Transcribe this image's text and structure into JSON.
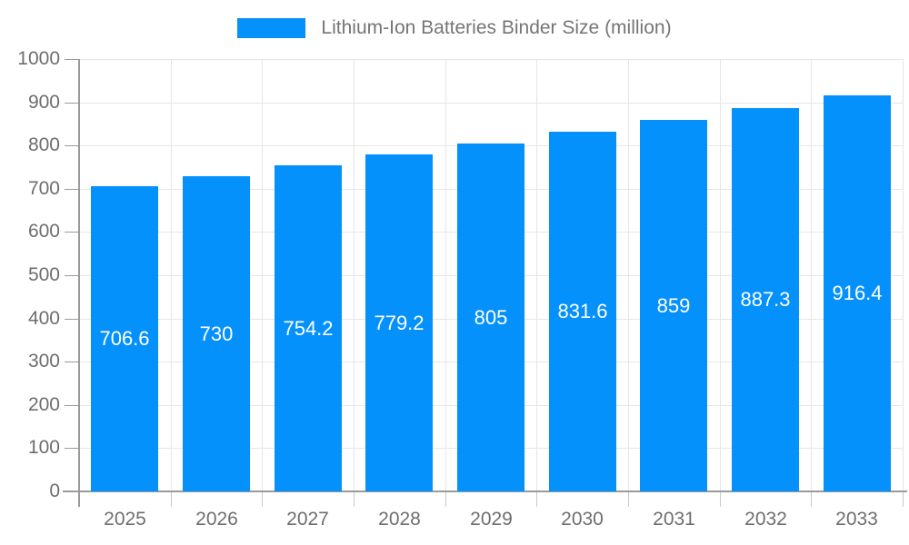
{
  "legend": {
    "items": [
      {
        "label": "Lithium-Ion Batteries Binder Size (million)",
        "swatch_color": "#0591FB"
      }
    ]
  },
  "chart_data": {
    "type": "bar",
    "title": "",
    "categories": [
      "2025",
      "2026",
      "2027",
      "2028",
      "2029",
      "2030",
      "2031",
      "2032",
      "2033"
    ],
    "series": [
      {
        "name": "Lithium-Ion Batteries Binder Size (million)",
        "values": [
          706.6,
          730,
          754.2,
          779.2,
          805,
          831.6,
          859,
          887.3,
          916.4
        ],
        "color": "#0591FB"
      }
    ],
    "value_labels": [
      "706.6",
      "730",
      "754.2",
      "779.2",
      "805",
      "831.6",
      "859",
      "887.3",
      "916.4"
    ],
    "xlabel": "",
    "ylabel": "",
    "ylim": [
      0,
      1000
    ],
    "yticks": [
      0,
      100,
      200,
      300,
      400,
      500,
      600,
      700,
      800,
      900,
      1000
    ],
    "grid": true,
    "legend_position": "top-center",
    "value_label_style": {
      "color": "#ffffff",
      "position": "center-of-bar"
    }
  },
  "colors": {
    "bar": "#0591FB",
    "axis_line": "#9a9a9a",
    "gridline": "#e6e6e6",
    "minor_tick": "#c9c9c9",
    "axis_label_text": "#6e6e6e",
    "legend_text": "#757575",
    "bar_value_text": "#ffffff",
    "background": "#ffffff"
  }
}
